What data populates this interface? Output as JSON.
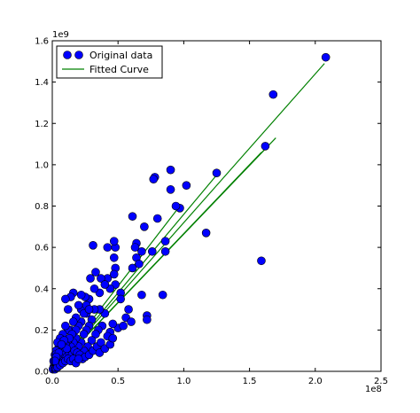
{
  "chart_data": {
    "type": "scatter",
    "title": "",
    "xlabel": "",
    "ylabel": "",
    "x_multiplier": "1e8",
    "y_multiplier": "1e9",
    "xlim": [
      0,
      2.5
    ],
    "ylim": [
      0,
      1.6
    ],
    "x_ticks": [
      "0.0",
      "0.5",
      "1.0",
      "1.5",
      "2.0",
      "2.5"
    ],
    "y_ticks": [
      "0.0",
      "0.2",
      "0.4",
      "0.6",
      "0.8",
      "1.0",
      "1.2",
      "1.4",
      "1.6"
    ],
    "grid": false,
    "legend_position": "top-left",
    "colors": {
      "points": "#0000ff",
      "fit": "#008000"
    },
    "series": [
      {
        "name": "Original data",
        "kind": "scatter",
        "points": [
          [
            2.08,
            1.52
          ],
          [
            1.68,
            1.34
          ],
          [
            1.62,
            1.09
          ],
          [
            1.59,
            0.535
          ],
          [
            1.25,
            0.96
          ],
          [
            1.17,
            0.67
          ],
          [
            1.02,
            0.9
          ],
          [
            0.9,
            0.975
          ],
          [
            0.97,
            0.79
          ],
          [
            0.94,
            0.8
          ],
          [
            0.9,
            0.88
          ],
          [
            0.78,
            0.94
          ],
          [
            0.77,
            0.93
          ],
          [
            0.8,
            0.74
          ],
          [
            0.7,
            0.7
          ],
          [
            0.86,
            0.63
          ],
          [
            0.86,
            0.58
          ],
          [
            0.76,
            0.58
          ],
          [
            0.68,
            0.58
          ],
          [
            0.64,
            0.62
          ],
          [
            0.63,
            0.6
          ],
          [
            0.64,
            0.55
          ],
          [
            0.66,
            0.52
          ],
          [
            0.61,
            0.5
          ],
          [
            0.61,
            0.75
          ],
          [
            0.48,
            0.6
          ],
          [
            0.47,
            0.63
          ],
          [
            0.42,
            0.6
          ],
          [
            0.47,
            0.55
          ],
          [
            0.48,
            0.5
          ],
          [
            0.31,
            0.61
          ],
          [
            0.47,
            0.47
          ],
          [
            0.42,
            0.45
          ],
          [
            0.37,
            0.45
          ],
          [
            0.33,
            0.48
          ],
          [
            0.29,
            0.45
          ],
          [
            0.84,
            0.37
          ],
          [
            0.68,
            0.37
          ],
          [
            0.72,
            0.27
          ],
          [
            0.72,
            0.25
          ],
          [
            0.52,
            0.38
          ],
          [
            0.52,
            0.35
          ],
          [
            0.48,
            0.42
          ],
          [
            0.44,
            0.4
          ],
          [
            0.4,
            0.42
          ],
          [
            0.36,
            0.38
          ],
          [
            0.32,
            0.4
          ],
          [
            0.28,
            0.35
          ],
          [
            0.25,
            0.36
          ],
          [
            0.22,
            0.37
          ],
          [
            0.16,
            0.38
          ],
          [
            0.14,
            0.36
          ],
          [
            0.12,
            0.3
          ],
          [
            0.1,
            0.35
          ],
          [
            0.14,
            0.2
          ],
          [
            0.5,
            0.21
          ],
          [
            0.46,
            0.23
          ],
          [
            0.44,
            0.19
          ],
          [
            0.42,
            0.17
          ],
          [
            0.38,
            0.22
          ],
          [
            0.35,
            0.2
          ],
          [
            0.33,
            0.18
          ],
          [
            0.3,
            0.25
          ],
          [
            0.28,
            0.22
          ],
          [
            0.26,
            0.2
          ],
          [
            0.24,
            0.18
          ],
          [
            0.22,
            0.24
          ],
          [
            0.2,
            0.22
          ],
          [
            0.18,
            0.26
          ],
          [
            0.16,
            0.24
          ],
          [
            0.58,
            0.3
          ],
          [
            0.56,
            0.26
          ],
          [
            0.54,
            0.22
          ],
          [
            0.6,
            0.24
          ],
          [
            0.4,
            0.28
          ],
          [
            0.36,
            0.3
          ],
          [
            0.32,
            0.3
          ],
          [
            0.26,
            0.28
          ],
          [
            0.22,
            0.3
          ],
          [
            0.2,
            0.32
          ],
          [
            0.3,
            0.15
          ],
          [
            0.27,
            0.12
          ],
          [
            0.24,
            0.1
          ],
          [
            0.22,
            0.14
          ],
          [
            0.2,
            0.12
          ],
          [
            0.18,
            0.16
          ],
          [
            0.16,
            0.14
          ],
          [
            0.14,
            0.12
          ],
          [
            0.12,
            0.15
          ],
          [
            0.1,
            0.13
          ],
          [
            0.09,
            0.1
          ],
          [
            0.08,
            0.12
          ],
          [
            0.07,
            0.08
          ],
          [
            0.06,
            0.1
          ],
          [
            0.05,
            0.07
          ],
          [
            0.04,
            0.06
          ],
          [
            0.03,
            0.05
          ],
          [
            0.02,
            0.03
          ],
          [
            0.01,
            0.02
          ],
          [
            0.015,
            0.04
          ],
          [
            0.025,
            0.06
          ],
          [
            0.035,
            0.03
          ],
          [
            0.045,
            0.09
          ],
          [
            0.055,
            0.05
          ],
          [
            0.065,
            0.04
          ],
          [
            0.075,
            0.06
          ],
          [
            0.085,
            0.05
          ],
          [
            0.095,
            0.08
          ],
          [
            0.11,
            0.07
          ],
          [
            0.13,
            0.09
          ],
          [
            0.15,
            0.08
          ],
          [
            0.17,
            0.1
          ],
          [
            0.19,
            0.09
          ],
          [
            0.21,
            0.08
          ],
          [
            0.23,
            0.06
          ],
          [
            0.25,
            0.07
          ],
          [
            0.28,
            0.08
          ],
          [
            0.31,
            0.1
          ],
          [
            0.34,
            0.12
          ],
          [
            0.37,
            0.14
          ],
          [
            0.12,
            0.2
          ],
          [
            0.1,
            0.22
          ],
          [
            0.08,
            0.18
          ],
          [
            0.06,
            0.16
          ],
          [
            0.05,
            0.12
          ],
          [
            0.04,
            0.14
          ],
          [
            0.03,
            0.1
          ],
          [
            0.02,
            0.08
          ],
          [
            0.01,
            0.05
          ],
          [
            0.005,
            0.01
          ],
          [
            0.02,
            0.01
          ],
          [
            0.04,
            0.02
          ],
          [
            0.06,
            0.03
          ],
          [
            0.08,
            0.04
          ],
          [
            0.1,
            0.05
          ],
          [
            0.12,
            0.06
          ],
          [
            0.14,
            0.05
          ],
          [
            0.16,
            0.06
          ],
          [
            0.18,
            0.04
          ],
          [
            0.2,
            0.06
          ],
          [
            0.36,
            0.09
          ],
          [
            0.4,
            0.11
          ],
          [
            0.44,
            0.13
          ],
          [
            0.46,
            0.16
          ],
          [
            0.26,
            0.32
          ],
          [
            0.24,
            0.28
          ],
          [
            0.28,
            0.3
          ],
          [
            0.18,
            0.2
          ],
          [
            0.15,
            0.18
          ],
          [
            0.13,
            0.16
          ],
          [
            0.11,
            0.11
          ],
          [
            0.09,
            0.15
          ],
          [
            0.07,
            0.13
          ],
          [
            0.05,
            0.09
          ],
          [
            0.03,
            0.07
          ],
          [
            0.02,
            0.05
          ]
        ]
      },
      {
        "name": "Fitted Curve",
        "kind": "line",
        "segments": [
          [
            [
              0.0,
              0.0
            ],
            [
              2.07,
              1.49
            ]
          ],
          [
            [
              0.0,
              0.0
            ],
            [
              1.7,
              1.13
            ]
          ],
          [
            [
              0.0,
              0.0
            ],
            [
              1.61,
              1.07
            ]
          ],
          [
            [
              0.0,
              0.0
            ],
            [
              1.59,
              1.06
            ]
          ],
          [
            [
              0.0,
              0.0
            ],
            [
              1.25,
              0.95
            ]
          ],
          [
            [
              0.0,
              0.0
            ],
            [
              0.97,
              0.8
            ]
          ]
        ]
      }
    ]
  }
}
